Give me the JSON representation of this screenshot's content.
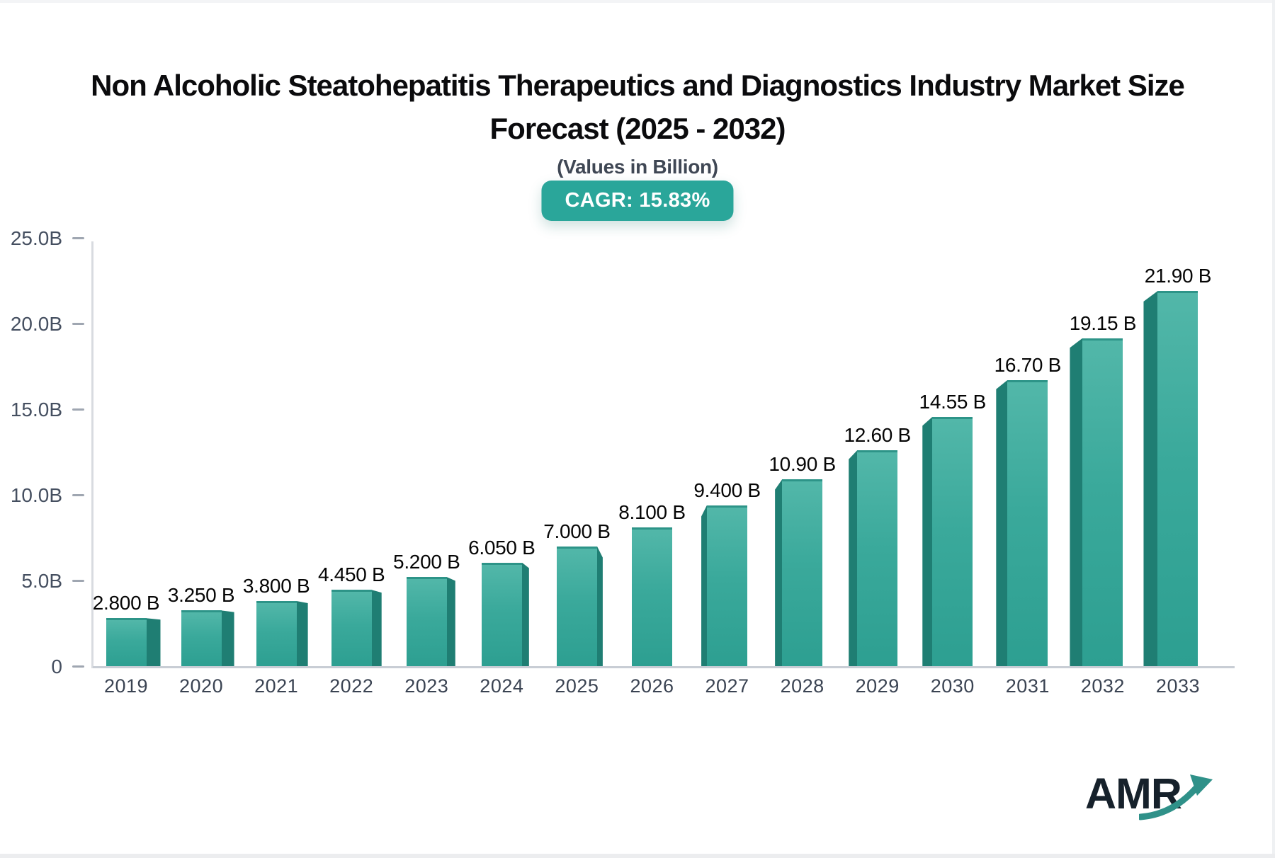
{
  "page": {
    "title_line1": "Non Alcoholic Steatohepatitis Therapeutics and Diagnostics Industry Market Size",
    "title_line2": "Forecast (2025 - 2032)",
    "subtitle": "(Values in Billion)",
    "cagr_badge": "CAGR: 15.83%",
    "logo_text": "AMR"
  },
  "colors": {
    "accent_teal": "#2aa69a",
    "badge_bg": "#2aa69a",
    "bar_front_top": "#52b7a9",
    "bar_front_mid": "#3aa99b",
    "bar_front_bottom": "#2d9f91",
    "bar_side": "#1f7e73",
    "bar_top_edge": "#2d9488",
    "axis_line": "#d8dbe0",
    "baseline": "#c8cdd5",
    "tick_dash": "#9fa6b1",
    "y_label_text": "#454f60",
    "x_label_text": "#3a4352",
    "value_label_text": "#060606",
    "logo_text_color": "#16212b",
    "logo_arrow_color": "#2f9189"
  },
  "chart_data": {
    "type": "bar",
    "title": "Non Alcoholic Steatohepatitis Therapeutics and Diagnostics Industry Market Size Forecast (2025 - 2032)",
    "subtitle": "(Values in Billion)",
    "annotation": "CAGR: 15.83%",
    "categories": [
      "2019",
      "2020",
      "2021",
      "2022",
      "2023",
      "2024",
      "2025",
      "2026",
      "2027",
      "2028",
      "2029",
      "2030",
      "2031",
      "2032",
      "2033"
    ],
    "values": [
      2.8,
      3.25,
      3.8,
      4.45,
      5.2,
      6.05,
      7.0,
      8.1,
      9.4,
      10.9,
      12.6,
      14.55,
      16.7,
      19.15,
      21.9
    ],
    "value_labels": [
      "2.800 B",
      "3.250 B",
      "3.800 B",
      "4.450 B",
      "5.200 B",
      "6.050 B",
      "7.000 B",
      "8.100 B",
      "9.400 B",
      "10.90 B",
      "12.60 B",
      "14.55 B",
      "16.70 B",
      "19.15 B",
      "21.90 B"
    ],
    "xlabel": "",
    "ylabel": "",
    "ylim": [
      0,
      25
    ],
    "y_ticks": [
      {
        "label": "25.0B",
        "value": 25
      },
      {
        "label": "20.0B",
        "value": 20
      },
      {
        "label": "15.0B",
        "value": 15
      },
      {
        "label": "10.0B",
        "value": 10
      },
      {
        "label": "5.0B",
        "value": 5
      },
      {
        "label": "0",
        "value": 0
      }
    ],
    "grid": false,
    "legend": false,
    "style": "3d-perspective-bars"
  }
}
